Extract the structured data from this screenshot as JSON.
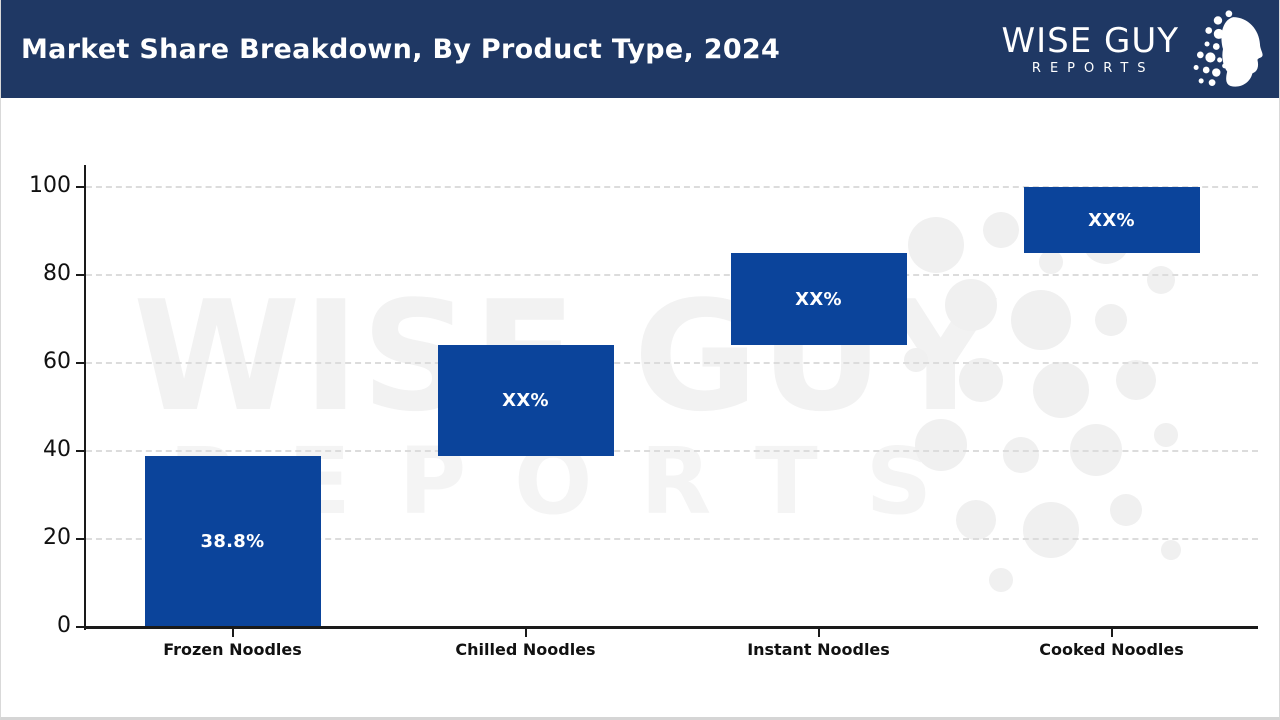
{
  "header": {
    "title": "Market Share Breakdown, By Product Type, 2024",
    "bg_color": "#1f3864",
    "logo": {
      "line1": "WISE GUY",
      "line2": "REPORTS",
      "icon": "dotted-head-profile-icon"
    }
  },
  "watermark": {
    "line1": "WISE GUY",
    "line2": "REPORTS"
  },
  "chart_data": {
    "type": "bar",
    "subtype": "floating-stacked-range",
    "title": "Market Share Breakdown, By Product Type, 2024",
    "categories": [
      "Frozen Noodles",
      "Chilled Noodles",
      "Instant Noodles",
      "Cooked Noodles"
    ],
    "segments": [
      {
        "category": "Frozen Noodles",
        "start": 0,
        "end": 38.8,
        "label": "38.8%"
      },
      {
        "category": "Chilled Noodles",
        "start": 38.8,
        "end": 64,
        "label": "XX%"
      },
      {
        "category": "Instant Noodles",
        "start": 64,
        "end": 85,
        "label": "XX%"
      },
      {
        "category": "Cooked Noodles",
        "start": 85,
        "end": 100,
        "label": "XX%"
      }
    ],
    "xlabel": "",
    "ylabel": "",
    "ylim": [
      0,
      100
    ],
    "yticks": [
      0,
      20,
      40,
      60,
      80,
      100
    ],
    "grid": "horizontal-dashed",
    "grid_color": "#dcdcdc",
    "axis_color": "#1a1a1a",
    "bar_color": "#0b449b",
    "label_color": "#ffffff",
    "legend": "none"
  }
}
